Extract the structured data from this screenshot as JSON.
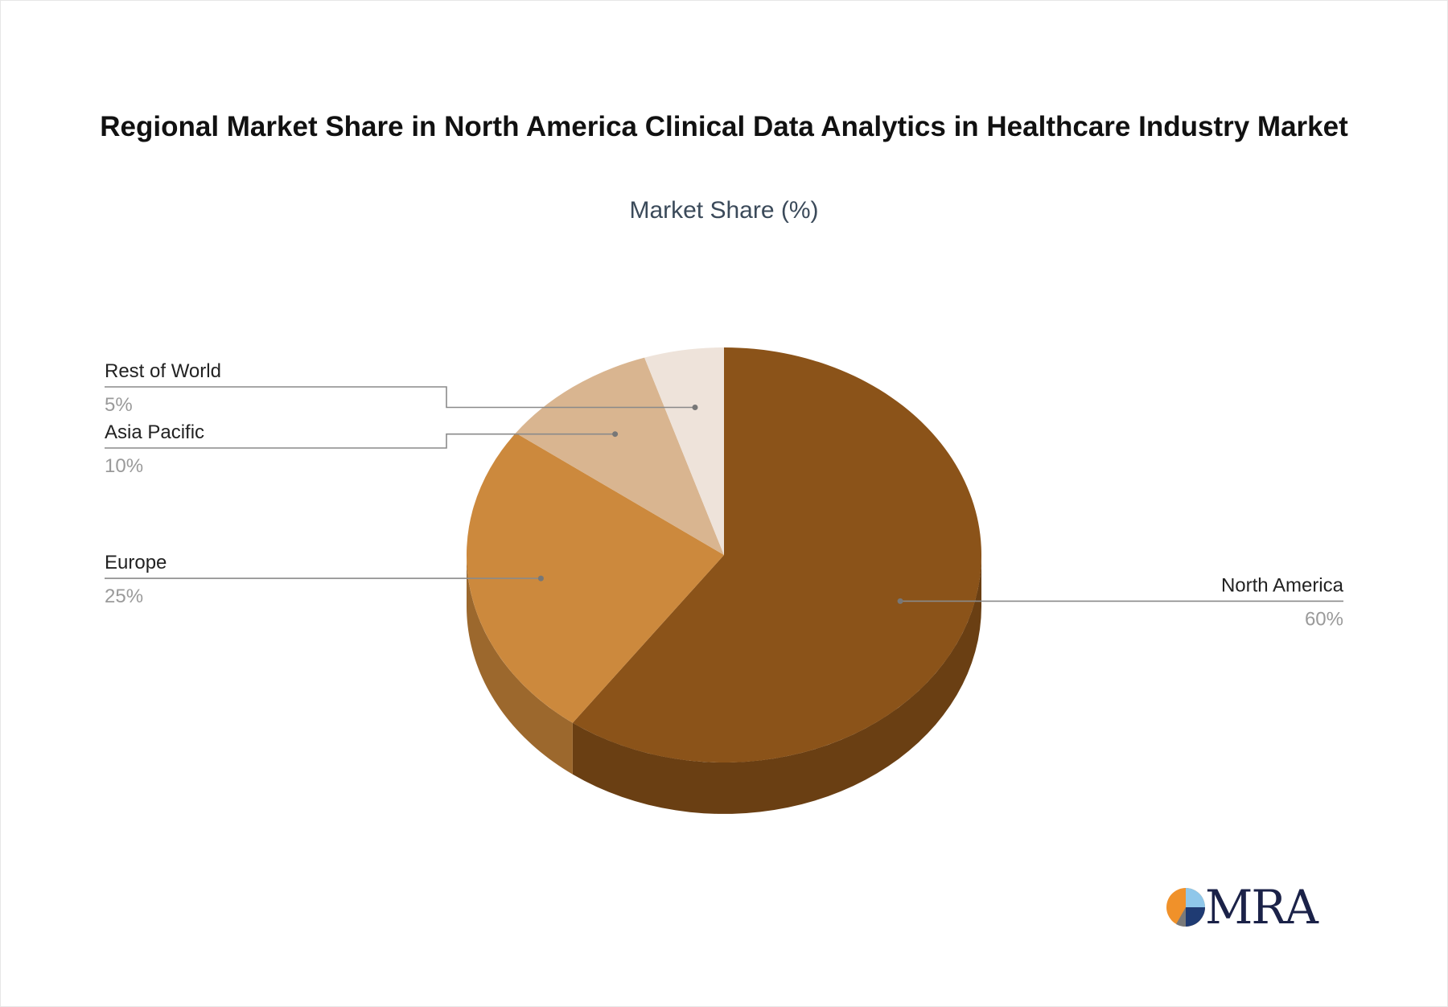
{
  "title": "Regional Market Share in North America Clinical Data Analytics in Healthcare Industry Market",
  "subtitle": "Market Share (%)",
  "logo_text": "MRA",
  "chart_data": {
    "type": "pie",
    "title": "Regional Market Share in North America Clinical Data Analytics in Healthcare Industry Market",
    "subtitle": "Market Share (%)",
    "slices": [
      {
        "label": "North America",
        "value": 60,
        "value_label": "60%",
        "color": "#8B5319",
        "side_color": "#6A3F13"
      },
      {
        "label": "Europe",
        "value": 25,
        "value_label": "25%",
        "color": "#CC893D",
        "side_color": "#9C682D"
      },
      {
        "label": "Asia Pacific",
        "value": 10,
        "value_label": "10%",
        "color": "#D9B590",
        "side_color": "#B39474"
      },
      {
        "label": "Rest of World",
        "value": 5,
        "value_label": "5%",
        "color": "#EEE3DA",
        "side_color": "#C9BEB5"
      }
    ]
  }
}
